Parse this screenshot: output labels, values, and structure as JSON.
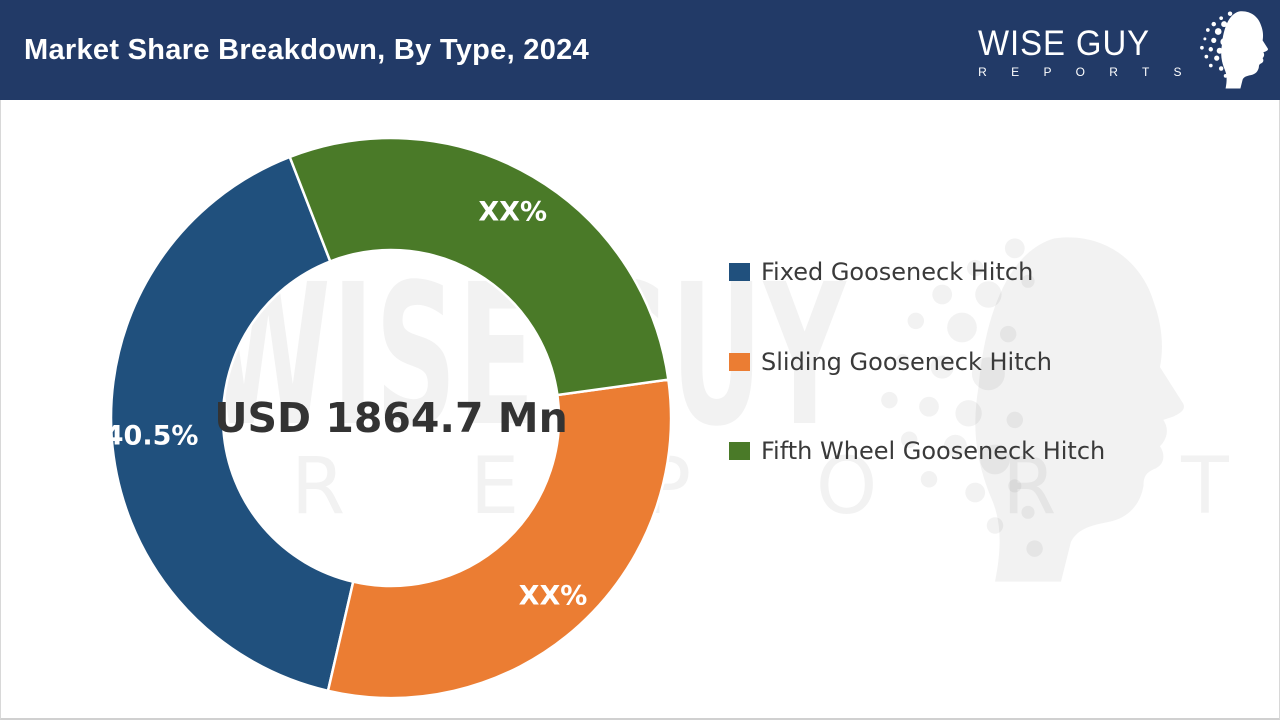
{
  "header": {
    "title": "Market Share Breakdown, By Type, 2024",
    "background_color": "#223A67",
    "logo": {
      "line1": "WISE GUY",
      "line2": "R E P O R T S"
    }
  },
  "watermark": {
    "line1": "WISE GUY",
    "line2": "R E P O R T S"
  },
  "chart_data": {
    "type": "pie",
    "subtype": "donut",
    "title": "Market Share Breakdown, By Type, 2024",
    "center_label": "USD 1864.7 Mn",
    "legend_position": "right",
    "hole_ratio": 0.6,
    "start_angle_deg": 111.2,
    "direction": "counterclockwise",
    "series": [
      {
        "name": "Fixed Gooseneck Hitch",
        "display_label": "40.5%",
        "value_pct": 40.5,
        "estimated": false,
        "color": "#20507D"
      },
      {
        "name": "Sliding Gooseneck Hitch",
        "display_label": "XX%",
        "value_pct": 30.8,
        "estimated": true,
        "color": "#EB7D33"
      },
      {
        "name": "Fifth Wheel Gooseneck Hitch",
        "display_label": "XX%",
        "value_pct": 28.7,
        "estimated": true,
        "color": "#4A7A28"
      }
    ]
  }
}
